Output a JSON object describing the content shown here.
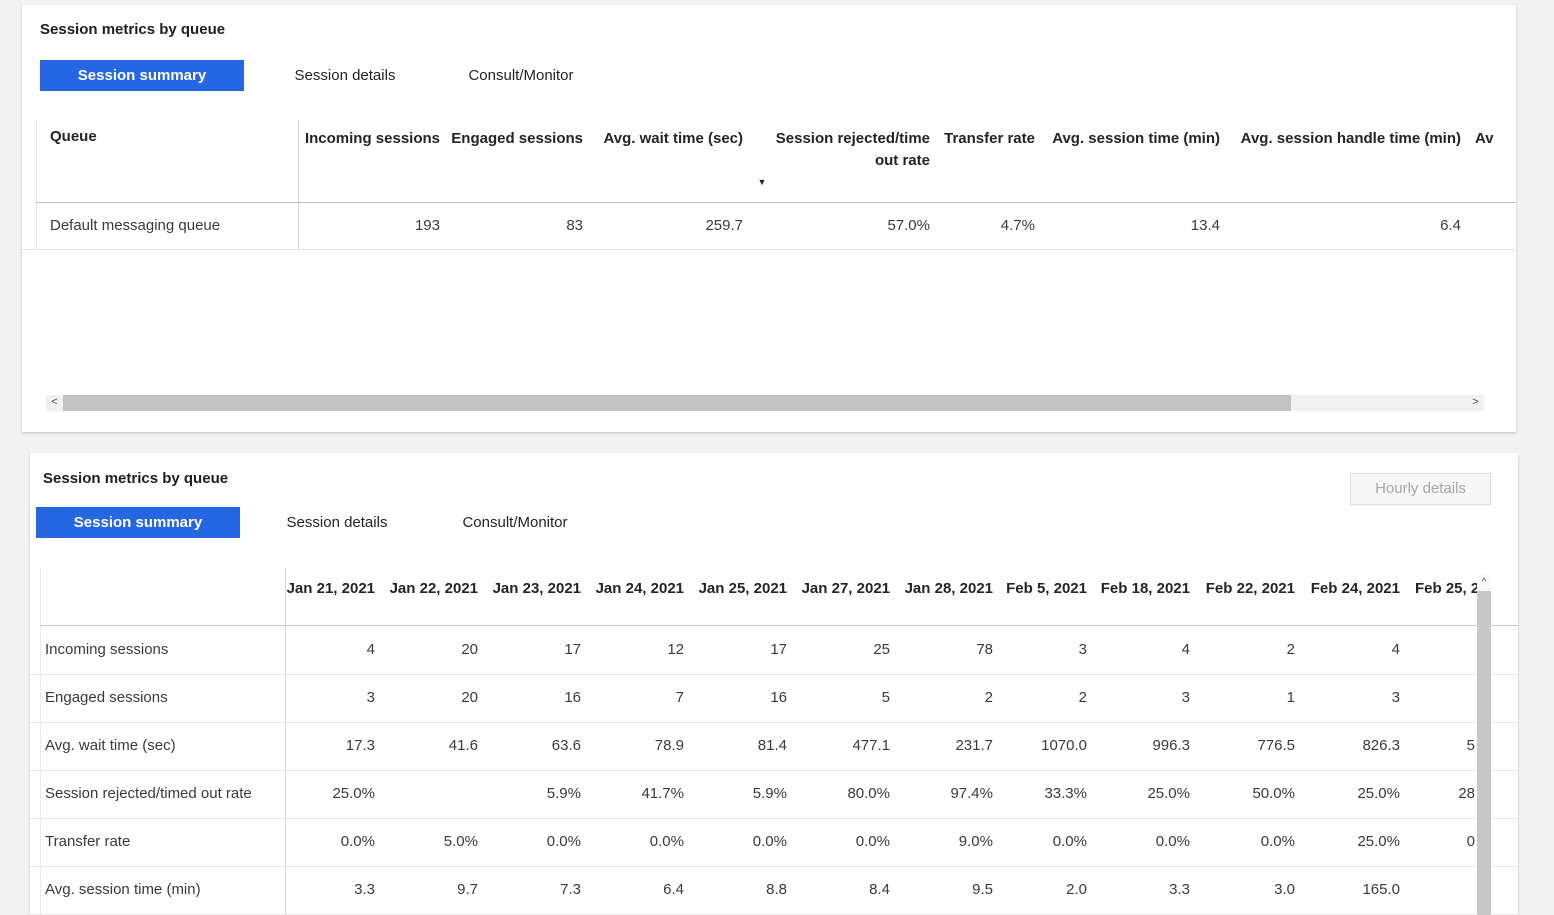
{
  "colors": {
    "accent_blue": "#2567E3",
    "page_bg": "#f2f2f2",
    "card_bg": "#ffffff",
    "header_text": "#252423",
    "body_text": "#3b3a39",
    "disabled_button_text": "#a8a6a4",
    "scrollbar_thumb": "#c2c2c2",
    "scrollbar_track": "#f1f1f1"
  },
  "icons": {
    "sort_descending": "▼",
    "scroll_left": "<",
    "scroll_right": ">",
    "scroll_up": "^"
  },
  "top_panel": {
    "title": "Session metrics by queue",
    "tabs": [
      {
        "label": "Session summary",
        "active": true
      },
      {
        "label": "Session details",
        "active": false
      },
      {
        "label": "Consult/Monitor",
        "active": false
      }
    ],
    "table": {
      "queue_header": "Queue",
      "columns": [
        "Incoming sessions",
        "Engaged sessions",
        "Avg. wait time (sec)",
        "Session rejected/time\nout rate",
        "Transfer rate",
        "Avg. session time (min)",
        "Avg. session handle time (min)",
        "Av"
      ],
      "sorted_column": "Avg. wait time (sec)",
      "sort_direction": "descending",
      "row": {
        "queue": "Default messaging queue",
        "values": [
          "193",
          "83",
          "259.7",
          "57.0%",
          "4.7%",
          "13.4",
          "6.4"
        ]
      }
    }
  },
  "bottom_panel": {
    "title": "Session metrics by queue",
    "hourly_details_button": "Hourly details",
    "tabs": [
      {
        "label": "Session summary",
        "active": true
      },
      {
        "label": "Session details",
        "active": false
      },
      {
        "label": "Consult/Monitor",
        "active": false
      }
    ],
    "matrix": {
      "date_columns": [
        "Jan 21, 2021",
        "Jan 22, 2021",
        "Jan 23, 2021",
        "Jan 24, 2021",
        "Jan 25, 2021",
        "Jan 27, 2021",
        "Jan 28, 2021",
        "Feb 5, 2021",
        "Feb 18, 2021",
        "Feb 22, 2021",
        "Feb 24, 2021",
        "Feb 25, 2"
      ],
      "rows": [
        {
          "label": "Incoming sessions",
          "values": [
            "4",
            "20",
            "17",
            "12",
            "17",
            "25",
            "78",
            "3",
            "4",
            "2",
            "4",
            ""
          ]
        },
        {
          "label": "Engaged sessions",
          "values": [
            "3",
            "20",
            "16",
            "7",
            "16",
            "5",
            "2",
            "2",
            "3",
            "1",
            "3",
            ""
          ]
        },
        {
          "label": "Avg. wait time (sec)",
          "values": [
            "17.3",
            "41.6",
            "63.6",
            "78.9",
            "81.4",
            "477.1",
            "231.7",
            "1070.0",
            "996.3",
            "776.5",
            "826.3",
            "5"
          ]
        },
        {
          "label": "Session rejected/timed out rate",
          "values": [
            "25.0%",
            "",
            "5.9%",
            "41.7%",
            "5.9%",
            "80.0%",
            "97.4%",
            "33.3%",
            "25.0%",
            "50.0%",
            "25.0%",
            "28"
          ]
        },
        {
          "label": "Transfer rate",
          "values": [
            "0.0%",
            "5.0%",
            "0.0%",
            "0.0%",
            "0.0%",
            "0.0%",
            "9.0%",
            "0.0%",
            "0.0%",
            "0.0%",
            "25.0%",
            "0"
          ]
        },
        {
          "label": "Avg. session time (min)",
          "values": [
            "3.3",
            "9.7",
            "7.3",
            "6.4",
            "8.8",
            "8.4",
            "9.5",
            "2.0",
            "3.3",
            "3.0",
            "165.0",
            ""
          ]
        }
      ]
    }
  }
}
